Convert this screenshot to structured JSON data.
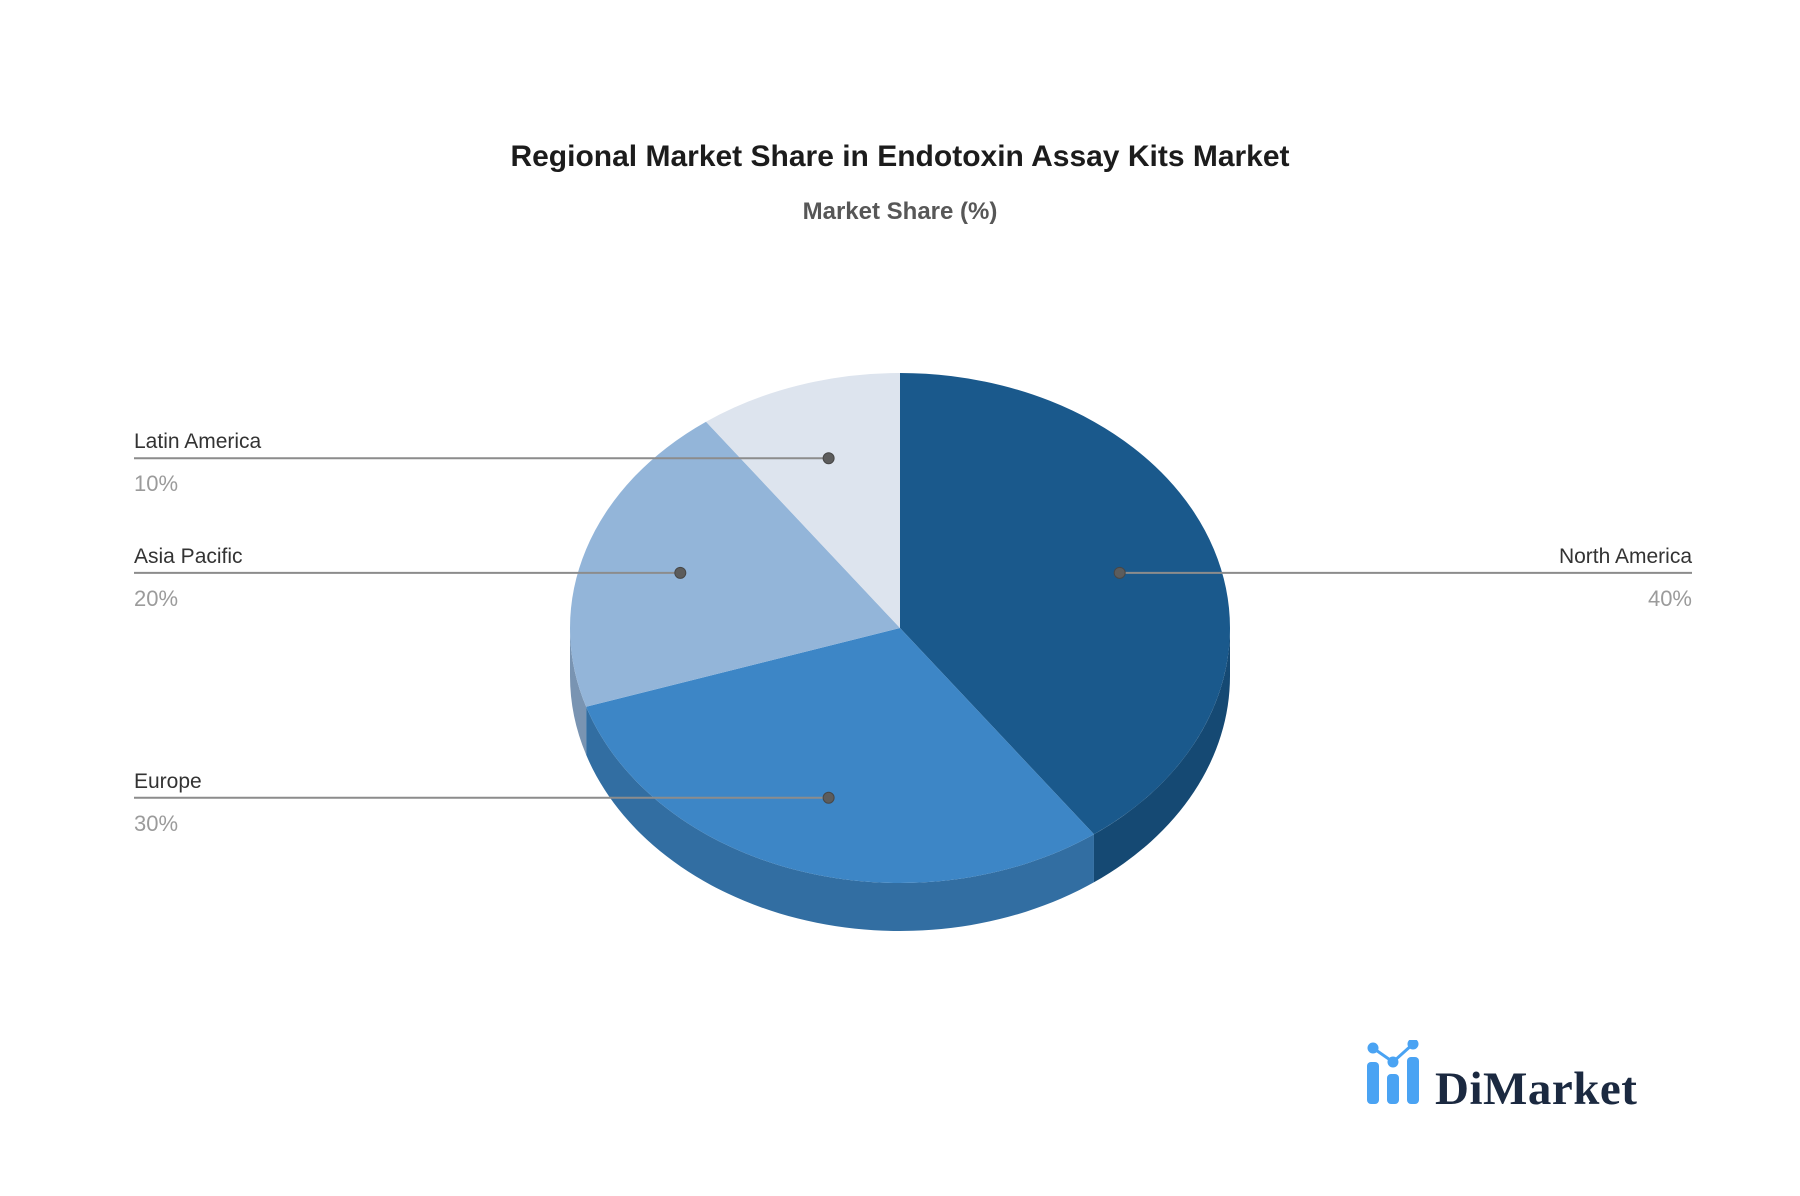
{
  "title": "Regional Market Share in Endotoxin Assay Kits Market",
  "subtitle": "Market Share (%)",
  "chart_data": {
    "type": "pie",
    "style": "3d",
    "title": "Regional Market Share in Endotoxin Assay Kits Market",
    "subtitle": "Market Share (%)",
    "unit": "%",
    "start_angle_deg": 0,
    "direction": "clockwise",
    "legend_position": "connector-labels",
    "series": [
      {
        "name": "North America",
        "value": 40,
        "percent_label": "40%",
        "color": "#1a598c"
      },
      {
        "name": "Europe",
        "value": 30,
        "percent_label": "30%",
        "color": "#3d86c6"
      },
      {
        "name": "Asia Pacific",
        "value": 20,
        "percent_label": "20%",
        "color": "#93b5d9"
      },
      {
        "name": "Latin America",
        "value": 10,
        "percent_label": "10%",
        "color": "#dde4ee"
      }
    ]
  },
  "connector": {
    "line_color": "#8c8c8c",
    "dot_color": "#5c5c5c"
  },
  "logo": {
    "text": "DiMarket",
    "icon": "bar-chart-trend-icon",
    "icon_color": "#4aa3f3",
    "text_color": "#1b2940"
  }
}
